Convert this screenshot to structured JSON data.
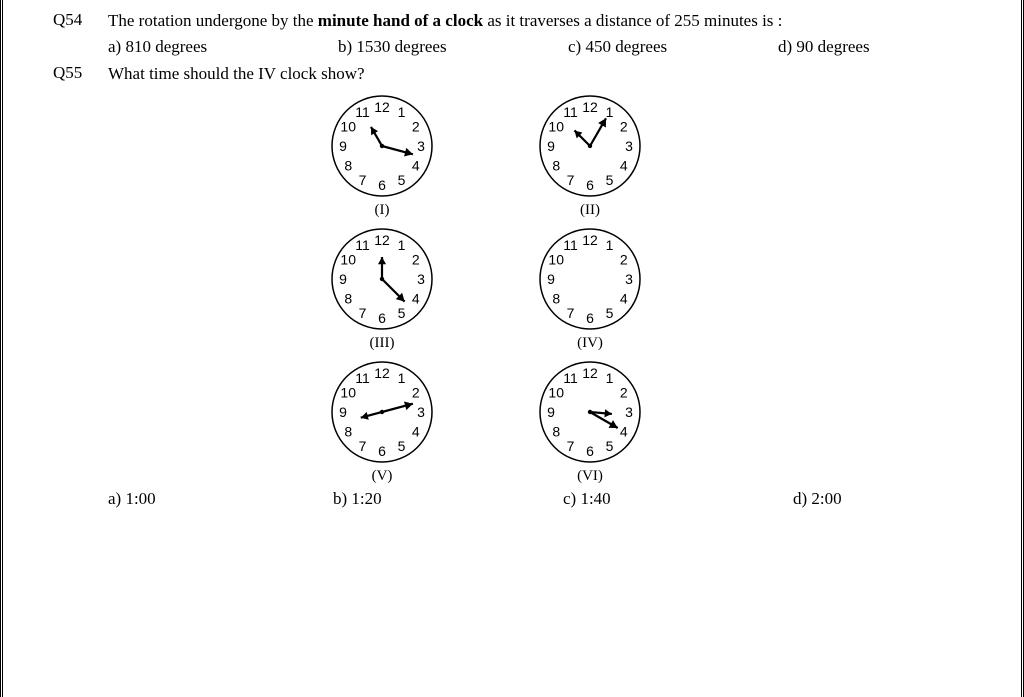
{
  "q54": {
    "number": "Q54",
    "text_prefix": "The rotation undergone by the ",
    "text_bold": "minute hand of a clock",
    "text_suffix": " as it traverses a distance of 255 minutes is :",
    "options": {
      "a": "a) 810 degrees",
      "b": "b) 1530 degrees",
      "c": "c) 450 degrees",
      "d": "d) 90 degrees"
    }
  },
  "q55": {
    "number": "Q55",
    "text": "What time should the IV clock show?",
    "options": {
      "a": "a) 1:00",
      "b": "b) 1:20",
      "c": "c) 1:40",
      "d": "d) 2:00"
    }
  },
  "clock_style": {
    "face_radius": 50,
    "stroke_color": "#000000",
    "stroke_width": 1.5,
    "background": "#ffffff",
    "number_font_size": 14,
    "number_font_family": "Arial, sans-serif",
    "hour_hand_length": 22,
    "minute_hand_length": 32,
    "hand_width": 2.2,
    "arrow_size": 5,
    "center_dot_r": 2.2
  },
  "clocks": [
    {
      "label": "(I)",
      "hour_angle_deg": 330,
      "minute_angle_deg": 105,
      "show_hands": true
    },
    {
      "label": "(II)",
      "hour_angle_deg": 315,
      "minute_angle_deg": 30,
      "show_hands": true
    },
    {
      "label": "(III)",
      "hour_angle_deg": 0,
      "minute_angle_deg": 135,
      "show_hands": true
    },
    {
      "label": "(IV)",
      "hour_angle_deg": 0,
      "minute_angle_deg": 0,
      "show_hands": false
    },
    {
      "label": "(V)",
      "hour_angle_deg": 255,
      "minute_angle_deg": 75,
      "show_hands": true
    },
    {
      "label": "(VI)",
      "hour_angle_deg": 95,
      "minute_angle_deg": 120,
      "show_hands": true
    }
  ]
}
